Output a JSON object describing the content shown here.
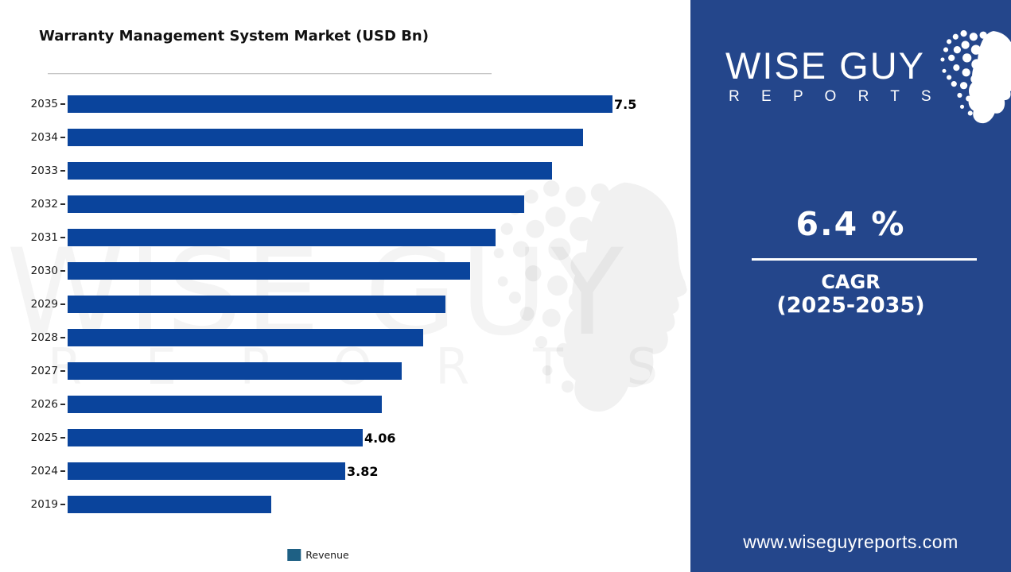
{
  "chart": {
    "title": "Warranty Management System Market (USD Bn)",
    "bar_color": "#0a449c",
    "legend": {
      "label": "Revenue",
      "swatch_color": "#1e6084"
    }
  },
  "chart_data": {
    "type": "bar",
    "orientation": "horizontal",
    "title": "Warranty Management System Market (USD Bn)",
    "categories": [
      "2035",
      "2034",
      "2033",
      "2032",
      "2031",
      "2030",
      "2029",
      "2028",
      "2027",
      "2026",
      "2025",
      "2024",
      "2019"
    ],
    "values": [
      7.5,
      7.1,
      6.67,
      6.28,
      5.89,
      5.54,
      5.2,
      4.89,
      4.6,
      4.32,
      4.06,
      3.82,
      2.8
    ],
    "value_labels": {
      "2035": "7.5",
      "2025": "4.06",
      "2024": "3.82"
    },
    "xlim": [
      0,
      7.5
    ],
    "xlabel": "",
    "ylabel": "",
    "grid": false,
    "legend": [
      "Revenue"
    ],
    "legend_position": "bottom-center"
  },
  "watermark": {
    "line1": "WISE GUY",
    "line2": "R E P O R T S"
  },
  "panel": {
    "bg_color": "#24468b",
    "brand_line1": "WISE GUY",
    "brand_line2": "R E P O R T S",
    "cagr_value": "6.4 %",
    "cagr_label": "CAGR",
    "cagr_range": "(2025-2035)",
    "website": "www.wiseguyreports.com"
  }
}
